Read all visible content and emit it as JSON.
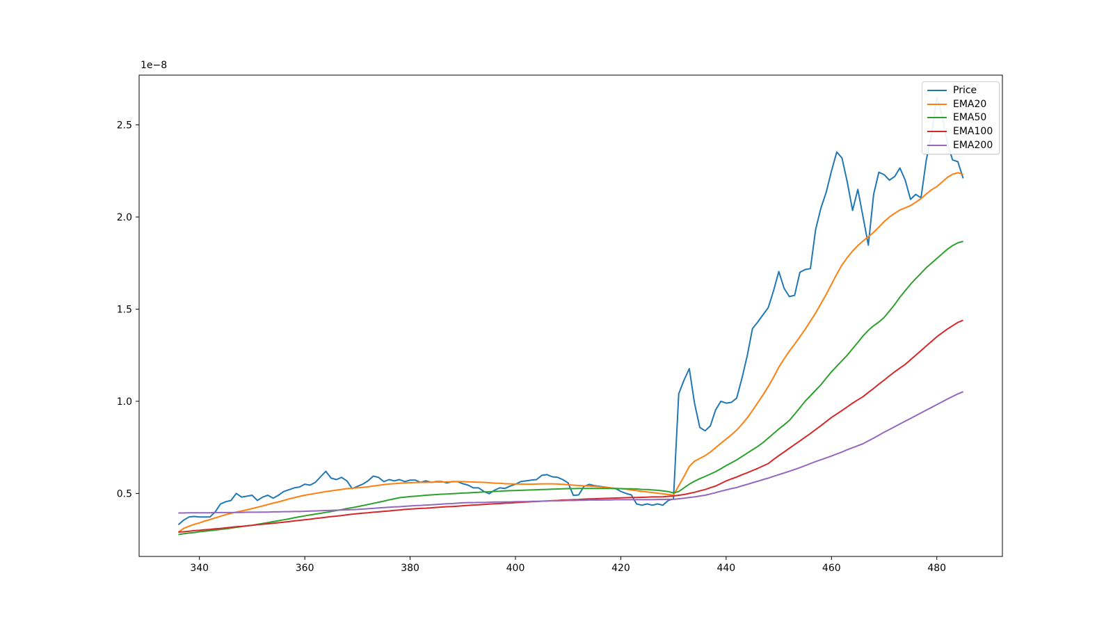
{
  "figure": {
    "background": "#ffffff",
    "spine_color": "#000000",
    "tick_color": "#000000",
    "offset_label": "1e−8"
  },
  "chart_data": {
    "type": "line",
    "title": "",
    "xlabel": "",
    "ylabel": "",
    "y_scale_offset_text": "1e−8",
    "grid": false,
    "x_start": 336,
    "x_step": 1,
    "xlim": [
      328.55,
      492.45
    ],
    "ylim": [
      0.158,
      2.77
    ],
    "x_ticks": [
      340,
      360,
      380,
      400,
      420,
      440,
      460,
      480
    ],
    "x_tick_labels": [
      "340",
      "360",
      "380",
      "400",
      "420",
      "440",
      "460",
      "480"
    ],
    "y_ticks": [
      0.5,
      1.0,
      1.5,
      2.0,
      2.5
    ],
    "y_tick_labels": [
      "0.5",
      "1.0",
      "1.5",
      "2.0",
      "2.5"
    ],
    "legend": {
      "position": "upper right",
      "entries": [
        "Price",
        "EMA20",
        "EMA50",
        "EMA100",
        "EMA200"
      ]
    },
    "series": [
      {
        "name": "Price",
        "color": "#1f77b4",
        "values": [
          0.33,
          0.355,
          0.372,
          0.375,
          0.372,
          0.372,
          0.372,
          0.4,
          0.443,
          0.455,
          0.462,
          0.5,
          0.48,
          0.485,
          0.49,
          0.462,
          0.48,
          0.49,
          0.474,
          0.49,
          0.51,
          0.52,
          0.53,
          0.535,
          0.55,
          0.545,
          0.56,
          0.59,
          0.62,
          0.583,
          0.575,
          0.587,
          0.568,
          0.526,
          0.538,
          0.55,
          0.568,
          0.594,
          0.587,
          0.564,
          0.575,
          0.568,
          0.575,
          0.564,
          0.572,
          0.572,
          0.56,
          0.568,
          0.56,
          0.564,
          0.564,
          0.557,
          0.564,
          0.564,
          0.553,
          0.545,
          0.53,
          0.53,
          0.511,
          0.498,
          0.517,
          0.53,
          0.527,
          0.54,
          0.55,
          0.564,
          0.568,
          0.572,
          0.575,
          0.598,
          0.602,
          0.59,
          0.587,
          0.575,
          0.557,
          0.489,
          0.492,
          0.538,
          0.549,
          0.542,
          0.538,
          0.534,
          0.53,
          0.527,
          0.511,
          0.5,
          0.492,
          0.443,
          0.436,
          0.443,
          0.436,
          0.443,
          0.436,
          0.462,
          0.47,
          1.04,
          1.115,
          1.177,
          0.99,
          0.858,
          0.84,
          0.866,
          0.953,
          1.0,
          0.99,
          0.994,
          1.017,
          1.125,
          1.247,
          1.394,
          1.43,
          1.47,
          1.508,
          1.6,
          1.704,
          1.613,
          1.568,
          1.575,
          1.7,
          1.715,
          1.72,
          1.934,
          2.05,
          2.134,
          2.25,
          2.353,
          2.32,
          2.19,
          2.036,
          2.15,
          2.0,
          1.847,
          2.123,
          2.243,
          2.23,
          2.2,
          2.22,
          2.266,
          2.2,
          2.096,
          2.123,
          2.104,
          2.31,
          2.45,
          2.651,
          2.55,
          2.4,
          2.31,
          2.3,
          2.21
        ]
      },
      {
        "name": "EMA20",
        "color": "#ff7f0e",
        "values": [
          0.29,
          0.31,
          0.322,
          0.332,
          0.34,
          0.35,
          0.358,
          0.367,
          0.376,
          0.385,
          0.392,
          0.399,
          0.405,
          0.411,
          0.418,
          0.425,
          0.432,
          0.44,
          0.447,
          0.454,
          0.462,
          0.47,
          0.477,
          0.484,
          0.49,
          0.495,
          0.5,
          0.505,
          0.51,
          0.514,
          0.518,
          0.522,
          0.526,
          0.528,
          0.53,
          0.533,
          0.536,
          0.54,
          0.544,
          0.548,
          0.551,
          0.553,
          0.555,
          0.557,
          0.558,
          0.559,
          0.56,
          0.56,
          0.561,
          0.562,
          0.562,
          0.563,
          0.563,
          0.564,
          0.564,
          0.563,
          0.562,
          0.561,
          0.56,
          0.558,
          0.556,
          0.555,
          0.553,
          0.552,
          0.551,
          0.551,
          0.55,
          0.55,
          0.551,
          0.552,
          0.552,
          0.552,
          0.551,
          0.549,
          0.547,
          0.545,
          0.543,
          0.541,
          0.54,
          0.538,
          0.536,
          0.533,
          0.53,
          0.528,
          0.526,
          0.523,
          0.519,
          0.515,
          0.511,
          0.508,
          0.505,
          0.501,
          0.498,
          0.494,
          0.49,
          0.542,
          0.592,
          0.646,
          0.675,
          0.69,
          0.705,
          0.724,
          0.748,
          0.772,
          0.795,
          0.818,
          0.843,
          0.875,
          0.91,
          0.95,
          0.992,
          1.035,
          1.08,
          1.13,
          1.185,
          1.23,
          1.272,
          1.31,
          1.35,
          1.39,
          1.435,
          1.48,
          1.53,
          1.58,
          1.635,
          1.69,
          1.74,
          1.78,
          1.815,
          1.845,
          1.87,
          1.893,
          1.917,
          1.945,
          1.975,
          2.0,
          2.02,
          2.038,
          2.05,
          2.062,
          2.08,
          2.1,
          2.125,
          2.148,
          2.165,
          2.19,
          2.215,
          2.232,
          2.24,
          2.232
        ]
      },
      {
        "name": "EMA50",
        "color": "#2ca02c",
        "values": [
          0.277,
          0.281,
          0.285,
          0.288,
          0.292,
          0.295,
          0.298,
          0.301,
          0.305,
          0.308,
          0.312,
          0.316,
          0.32,
          0.324,
          0.327,
          0.332,
          0.337,
          0.342,
          0.347,
          0.352,
          0.357,
          0.362,
          0.368,
          0.373,
          0.378,
          0.383,
          0.388,
          0.392,
          0.397,
          0.402,
          0.407,
          0.412,
          0.418,
          0.423,
          0.428,
          0.434,
          0.44,
          0.446,
          0.452,
          0.458,
          0.465,
          0.471,
          0.477,
          0.48,
          0.483,
          0.485,
          0.487,
          0.49,
          0.492,
          0.494,
          0.496,
          0.497,
          0.499,
          0.5,
          0.502,
          0.503,
          0.505,
          0.506,
          0.508,
          0.509,
          0.511,
          0.512,
          0.514,
          0.515,
          0.516,
          0.517,
          0.518,
          0.519,
          0.52,
          0.521,
          0.522,
          0.523,
          0.524,
          0.525,
          0.526,
          0.526,
          0.527,
          0.527,
          0.527,
          0.527,
          0.527,
          0.527,
          0.527,
          0.526,
          0.526,
          0.525,
          0.525,
          0.524,
          0.522,
          0.521,
          0.519,
          0.517,
          0.514,
          0.51,
          0.503,
          0.51,
          0.53,
          0.55,
          0.566,
          0.58,
          0.592,
          0.605,
          0.618,
          0.634,
          0.651,
          0.666,
          0.682,
          0.7,
          0.719,
          0.737,
          0.755,
          0.776,
          0.8,
          0.825,
          0.85,
          0.872,
          0.896,
          0.93,
          0.965,
          1.0,
          1.03,
          1.06,
          1.09,
          1.125,
          1.16,
          1.19,
          1.22,
          1.25,
          1.285,
          1.32,
          1.355,
          1.385,
          1.41,
          1.43,
          1.455,
          1.49,
          1.525,
          1.565,
          1.6,
          1.635,
          1.665,
          1.695,
          1.725,
          1.75,
          1.775,
          1.8,
          1.825,
          1.845,
          1.86,
          1.868
        ]
      },
      {
        "name": "EMA100",
        "color": "#d62728",
        "values": [
          0.29,
          0.292,
          0.295,
          0.298,
          0.3,
          0.303,
          0.305,
          0.308,
          0.31,
          0.313,
          0.316,
          0.319,
          0.321,
          0.324,
          0.327,
          0.33,
          0.333,
          0.335,
          0.338,
          0.341,
          0.344,
          0.347,
          0.351,
          0.354,
          0.357,
          0.36,
          0.364,
          0.367,
          0.371,
          0.374,
          0.377,
          0.38,
          0.384,
          0.387,
          0.39,
          0.393,
          0.395,
          0.398,
          0.4,
          0.403,
          0.405,
          0.408,
          0.41,
          0.413,
          0.415,
          0.417,
          0.419,
          0.42,
          0.422,
          0.424,
          0.426,
          0.428,
          0.429,
          0.431,
          0.433,
          0.435,
          0.437,
          0.438,
          0.44,
          0.442,
          0.444,
          0.445,
          0.447,
          0.448,
          0.45,
          0.452,
          0.453,
          0.455,
          0.456,
          0.458,
          0.459,
          0.461,
          0.462,
          0.464,
          0.465,
          0.466,
          0.467,
          0.469,
          0.47,
          0.471,
          0.472,
          0.473,
          0.474,
          0.475,
          0.476,
          0.477,
          0.478,
          0.478,
          0.479,
          0.48,
          0.481,
          0.481,
          0.482,
          0.484,
          0.486,
          0.49,
          0.494,
          0.5,
          0.506,
          0.514,
          0.521,
          0.531,
          0.54,
          0.554,
          0.568,
          0.579,
          0.589,
          0.601,
          0.612,
          0.624,
          0.636,
          0.649,
          0.662,
          0.684,
          0.705,
          0.725,
          0.745,
          0.765,
          0.785,
          0.805,
          0.825,
          0.847,
          0.868,
          0.89,
          0.912,
          0.931,
          0.95,
          0.97,
          0.99,
          1.008,
          1.025,
          1.048,
          1.07,
          1.093,
          1.115,
          1.138,
          1.16,
          1.18,
          1.2,
          1.225,
          1.25,
          1.275,
          1.3,
          1.325,
          1.35,
          1.371,
          1.392,
          1.41,
          1.428,
          1.44
        ]
      },
      {
        "name": "EMA200",
        "color": "#9467bd",
        "values": [
          0.394,
          0.394,
          0.395,
          0.395,
          0.395,
          0.395,
          0.395,
          0.396,
          0.396,
          0.396,
          0.396,
          0.397,
          0.397,
          0.398,
          0.398,
          0.398,
          0.399,
          0.399,
          0.4,
          0.4,
          0.401,
          0.401,
          0.402,
          0.402,
          0.403,
          0.404,
          0.405,
          0.406,
          0.407,
          0.408,
          0.409,
          0.41,
          0.411,
          0.412,
          0.413,
          0.415,
          0.417,
          0.419,
          0.421,
          0.423,
          0.425,
          0.427,
          0.428,
          0.43,
          0.432,
          0.434,
          0.435,
          0.437,
          0.438,
          0.44,
          0.442,
          0.444,
          0.445,
          0.447,
          0.449,
          0.45,
          0.45,
          0.451,
          0.451,
          0.452,
          0.453,
          0.453,
          0.454,
          0.454,
          0.455,
          0.456,
          0.456,
          0.457,
          0.457,
          0.458,
          0.459,
          0.46,
          0.46,
          0.461,
          0.462,
          0.462,
          0.463,
          0.463,
          0.464,
          0.464,
          0.464,
          0.465,
          0.465,
          0.466,
          0.466,
          0.466,
          0.466,
          0.466,
          0.466,
          0.466,
          0.466,
          0.467,
          0.467,
          0.468,
          0.468,
          0.471,
          0.474,
          0.478,
          0.481,
          0.486,
          0.49,
          0.497,
          0.504,
          0.512,
          0.519,
          0.526,
          0.532,
          0.541,
          0.549,
          0.558,
          0.566,
          0.575,
          0.583,
          0.593,
          0.602,
          0.611,
          0.62,
          0.63,
          0.64,
          0.651,
          0.662,
          0.673,
          0.683,
          0.693,
          0.703,
          0.714,
          0.725,
          0.737,
          0.748,
          0.759,
          0.77,
          0.785,
          0.8,
          0.816,
          0.832,
          0.847,
          0.862,
          0.877,
          0.892,
          0.907,
          0.922,
          0.937,
          0.952,
          0.967,
          0.982,
          0.997,
          1.012,
          1.026,
          1.04,
          1.052
        ]
      }
    ]
  }
}
